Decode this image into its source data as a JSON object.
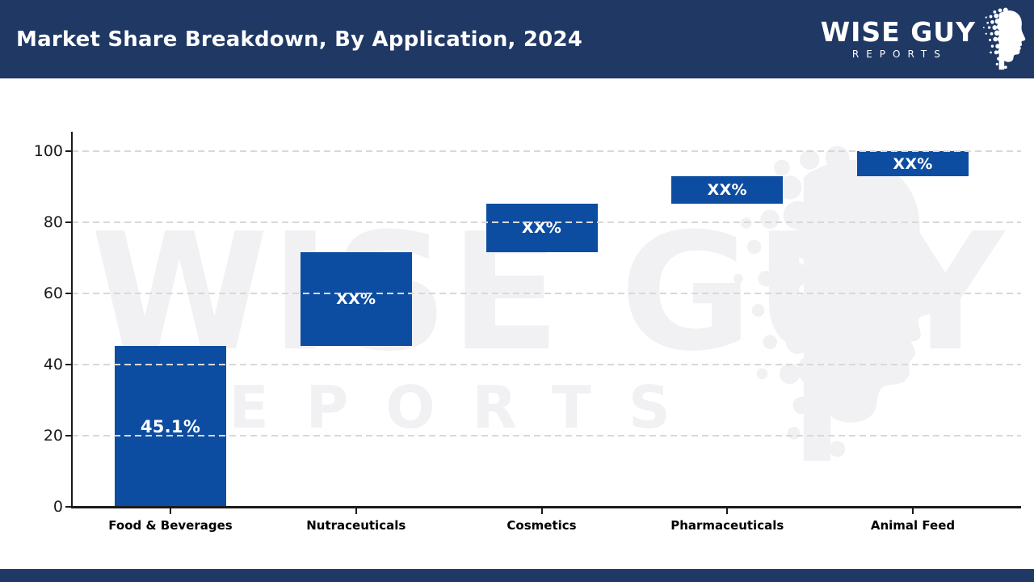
{
  "colors": {
    "header_bg": "#1f3864",
    "footer_bg": "#1f3864",
    "bar": "#0d4da1",
    "gridline": "#d8d8d8",
    "axis": "#1a1a1a",
    "title_text": "#ffffff",
    "bar_label_text": "#ffffff",
    "watermark": "#f1f1f3"
  },
  "header": {
    "title": "Market Share Breakdown, By Application, 2024",
    "logo": {
      "line1": "WISE GUY",
      "line2": "REPORTS"
    }
  },
  "watermark": {
    "line1": "WISE GUY",
    "line2": "REPORTS"
  },
  "chart_data": {
    "type": "bar",
    "subtype": "waterfall",
    "title": "Market Share Breakdown, By Application, 2024",
    "categories": [
      "Food & Beverages",
      "Nutraceuticals",
      "Cosmetics",
      "Pharmaceuticals",
      "Animal Feed"
    ],
    "segments": [
      {
        "category": "Food & Beverages",
        "start": 0,
        "end": 45.1,
        "label": "45.1%"
      },
      {
        "category": "Nutraceuticals",
        "start": 45.1,
        "end": 71.6,
        "label": "XX%"
      },
      {
        "category": "Cosmetics",
        "start": 71.6,
        "end": 85.2,
        "label": "XX%"
      },
      {
        "category": "Pharmaceuticals",
        "start": 85.2,
        "end": 92.9,
        "label": "XX%"
      },
      {
        "category": "Animal Feed",
        "start": 92.9,
        "end": 100,
        "label": "XX%"
      }
    ],
    "xlabel": "",
    "ylabel": "",
    "ylim": [
      0,
      100
    ],
    "yticks": [
      0,
      20,
      40,
      60,
      80,
      100
    ],
    "grid": "horizontal-dashed-over-bars",
    "legend": "none"
  }
}
